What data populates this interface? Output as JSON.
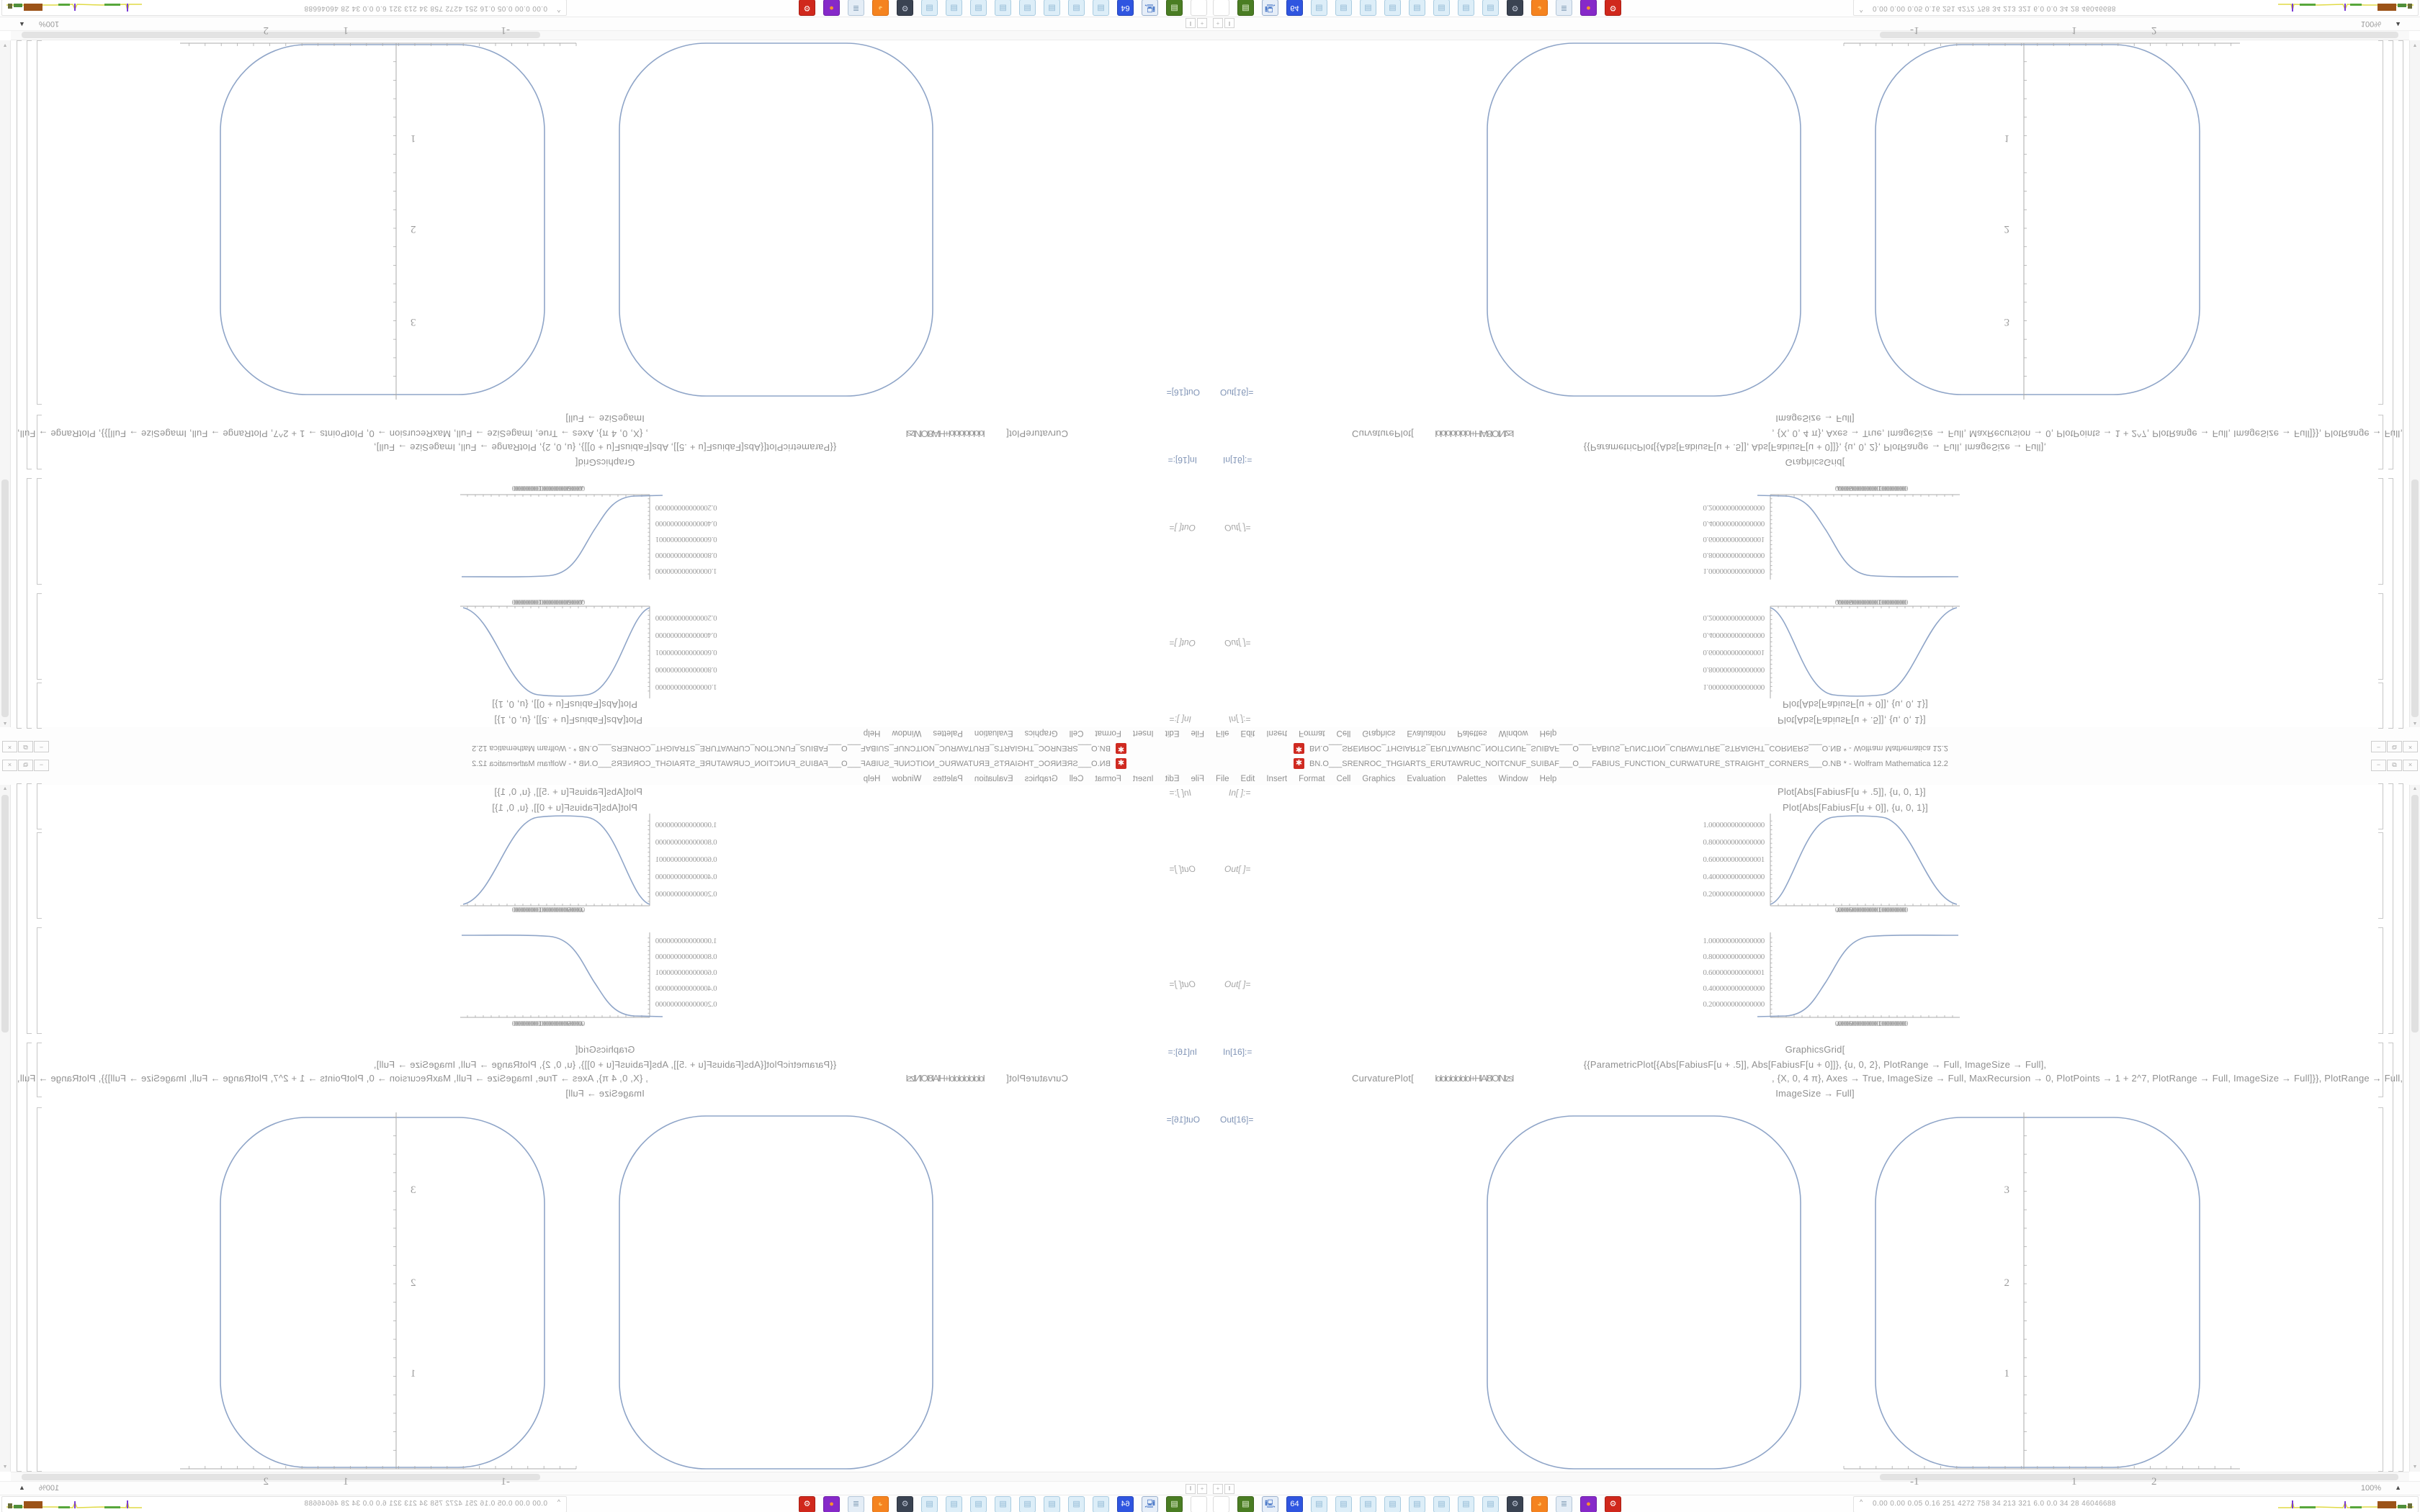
{
  "window": {
    "title": "BN.O___SRENROC_THGIARTS_ERUTAWRUC_NOITCNUF_SUIBAF___O___FABIUS_FUNCTION_CURWATURE_STRAIGHT_CORNERS___O.NB * - Wolfram Mathematica 12.2",
    "app_icon_glyph": "✱",
    "controls": {
      "minimize": "−",
      "restore": "⧉",
      "close": "×"
    }
  },
  "menu": {
    "items": [
      "File",
      "Edit",
      "Insert",
      "Format",
      "Cell",
      "Graphics",
      "Evaluation",
      "Palettes",
      "Window",
      "Help"
    ]
  },
  "cells": {
    "in_label_bullet": "In[ ]:=",
    "out_label_bullet1": "Out[ ]=",
    "out_label_bullet2": "Out[ ]=",
    "in_label_16": "In[16]:=",
    "out_label_16": "Out[16]=",
    "code1": "Plot[Abs[FabiusF[u + .5]], {u, 0, 1}]",
    "code2": "Plot[Abs[FabiusF[u + 0]], {u, 0, 1}]",
    "gg_line1": "GraphicsGrid[",
    "gg_line2": "{{ParametricPlot[{Abs[FabiusF[u + .5]], Abs[FabiusF[u + 0]]}, {u, 0, 2}, PlotRange → Full, ImageSize → Full],",
    "gg_line3_pre": "CurvaturePlot[",
    "gg_line3_garble": "IoIoIoIoIoIoIoI+HIAI8IOINIzsI",
    "gg_line3_post": ", {X, 0, 4 π}, Axes → True, ImageSize → Full, MaxRecursion → 0, PlotPoints → 1 + 2^7, PlotRange → Full, ImageSize → Full]}}, PlotRange → Full,",
    "gg_line4": "ImageSize → Full]"
  },
  "plots": {
    "small_ytick_labels": [
      "1.000000000000000",
      "0.800000000000000",
      "0.600000000000001",
      "0.400000000000000",
      "0.200000000000000"
    ],
    "small_xtick_garble": "0.400000060000000000000000010000000000000000",
    "big": {
      "x_labels": [
        "-1",
        "1",
        "2"
      ],
      "y_labels": [
        "3",
        "2",
        "1"
      ]
    }
  },
  "status": {
    "zoom_level": "100%",
    "zoom_caret": "▲",
    "left_box1": "+",
    "left_box2": "‖"
  },
  "overlay": {
    "caret": "^",
    "stats": "0.00 0.00 0.05 0.16 251 4272 758   34   213 321   6.0   0.0   34   28  46046688"
  },
  "taskbar": {
    "icons": [
      {
        "name": "window-white-icon",
        "color": "#ffffff",
        "border": "#dcdcdc",
        "glyph": "",
        "fg": "#cccccc"
      },
      {
        "name": "book-green-icon",
        "color": "#4a7d23",
        "border": "#3a6318",
        "glyph": "▤",
        "fg": "#e8f5d8"
      },
      {
        "name": "computer-monitor-icon",
        "color": "#e6eef8",
        "border": "#9ab0cc",
        "glyph": "🖳",
        "fg": "#4a78c8"
      },
      {
        "name": "floppy-64-icon",
        "color": "#2f55e0",
        "border": "#2343b8",
        "glyph": "64",
        "fg": "#ffffff"
      },
      {
        "name": "notepad-icon",
        "color": "#ddeef8",
        "border": "#a9cbe0",
        "glyph": "▤",
        "fg": "#8fb8d4"
      },
      {
        "name": "notepad-icon",
        "color": "#ddeef8",
        "border": "#a9cbe0",
        "glyph": "▤",
        "fg": "#8fb8d4"
      },
      {
        "name": "notepad-icon",
        "color": "#ddeef8",
        "border": "#a9cbe0",
        "glyph": "▤",
        "fg": "#8fb8d4"
      },
      {
        "name": "notepad-icon",
        "color": "#ddeef8",
        "border": "#a9cbe0",
        "glyph": "▤",
        "fg": "#8fb8d4"
      },
      {
        "name": "notepad-icon",
        "color": "#ddeef8",
        "border": "#a9cbe0",
        "glyph": "▤",
        "fg": "#8fb8d4"
      },
      {
        "name": "notepad-icon",
        "color": "#ddeef8",
        "border": "#a9cbe0",
        "glyph": "▤",
        "fg": "#8fb8d4"
      },
      {
        "name": "notepad-icon",
        "color": "#ddeef8",
        "border": "#a9cbe0",
        "glyph": "▤",
        "fg": "#8fb8d4"
      },
      {
        "name": "notepad-icon",
        "color": "#ddeef8",
        "border": "#a9cbe0",
        "glyph": "▤",
        "fg": "#8fb8d4"
      },
      {
        "name": "monitor-gear-icon",
        "color": "#3a4352",
        "border": "#2b313d",
        "glyph": "⚙",
        "fg": "#c0c8d8"
      },
      {
        "name": "firefox-icon",
        "color": "#f5831f",
        "border": "#d96c10",
        "glyph": "◕",
        "fg": "#ffc266"
      },
      {
        "name": "script-paper-icon",
        "color": "#e4edf6",
        "border": "#b4c6d8",
        "glyph": "≣",
        "fg": "#8aa4bc"
      },
      {
        "name": "media-purple-icon",
        "color": "#8629c9",
        "border": "#6c1ea6",
        "glyph": "●",
        "fg": "#ff9329"
      },
      {
        "name": "gear-red-icon",
        "color": "#d0281c",
        "border": "#a81d13",
        "glyph": "⚙",
        "fg": "#ffffff"
      }
    ]
  },
  "chart_data": [
    {
      "type": "line",
      "title": "Abs[FabiusF[u + .5]]",
      "x_range": [
        0,
        1
      ],
      "y_range": [
        0,
        1
      ],
      "description": "bump: rises from 0, plateau at 1.0, falls back to 0",
      "y_ticks": [
        0.2,
        0.4,
        0.6,
        0.8,
        1.0
      ]
    },
    {
      "type": "line",
      "title": "Abs[FabiusF[u + 0]]",
      "x_range": [
        0,
        1
      ],
      "y_range": [
        0,
        1
      ],
      "description": "sigmoid: 0 to 1 smooth step",
      "y_ticks": [
        0.2,
        0.4,
        0.6,
        0.8,
        1.0
      ]
    },
    {
      "type": "line",
      "title": "ParametricPlot squircle",
      "description": "closed rounded-square curve, no axis labels"
    },
    {
      "type": "line",
      "title": "CurvaturePlot",
      "x_ticks": [
        -1,
        1,
        2
      ],
      "y_ticks": [
        1,
        2,
        3
      ],
      "description": "rounded-square curvature curve touching x-axis, vertical axis through plot"
    }
  ]
}
